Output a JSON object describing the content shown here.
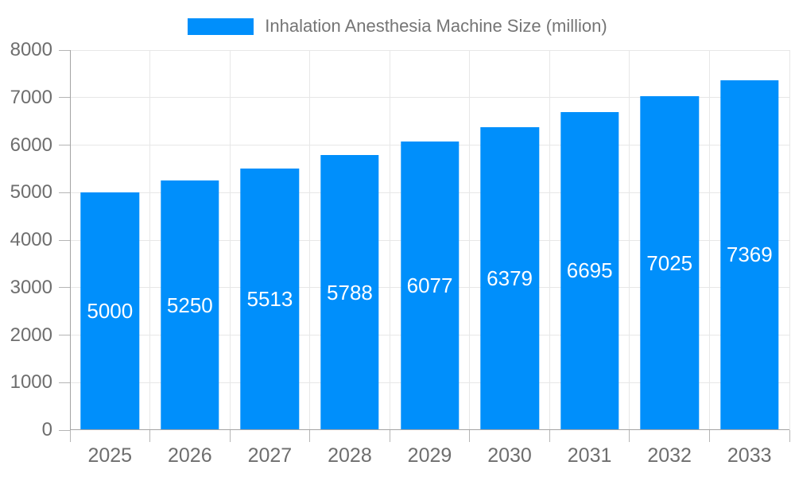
{
  "legend": {
    "position": "top",
    "items": [
      {
        "label": "Inhalation Anesthesia Machine Size (million)",
        "color": "#008FFB"
      }
    ]
  },
  "chart_data": {
    "type": "bar",
    "title": "Inhalation Anesthesia Machine Size (million)",
    "categories": [
      "2025",
      "2026",
      "2027",
      "2028",
      "2029",
      "2030",
      "2031",
      "2032",
      "2033"
    ],
    "series": [
      {
        "name": "Inhalation Anesthesia Machine Size (million)",
        "color": "#008FFB",
        "values": [
          5000,
          5250,
          5513,
          5788,
          6077,
          6379,
          6695,
          7025,
          7369
        ]
      }
    ],
    "data_labels": {
      "visible": true,
      "color": "#ffffff",
      "position": "bar-center"
    },
    "xlabel": "",
    "ylabel": "",
    "ylim": [
      0,
      8000
    ],
    "ytick_interval": 1000,
    "ytick_labels": [
      "0",
      "1000",
      "2000",
      "3000",
      "4000",
      "5000",
      "6000",
      "7000",
      "8000"
    ],
    "grid": "on",
    "legend_position": "top"
  },
  "colors": {
    "bar": "#008FFB",
    "grid_line": "#e7e7e7",
    "axis_line": "#a3a3a3",
    "tick_mark": "#b5b5b5",
    "axis_label_text": "#6e6e6e",
    "legend_text": "#757575",
    "data_label_text": "#ffffff",
    "background": "#ffffff"
  }
}
